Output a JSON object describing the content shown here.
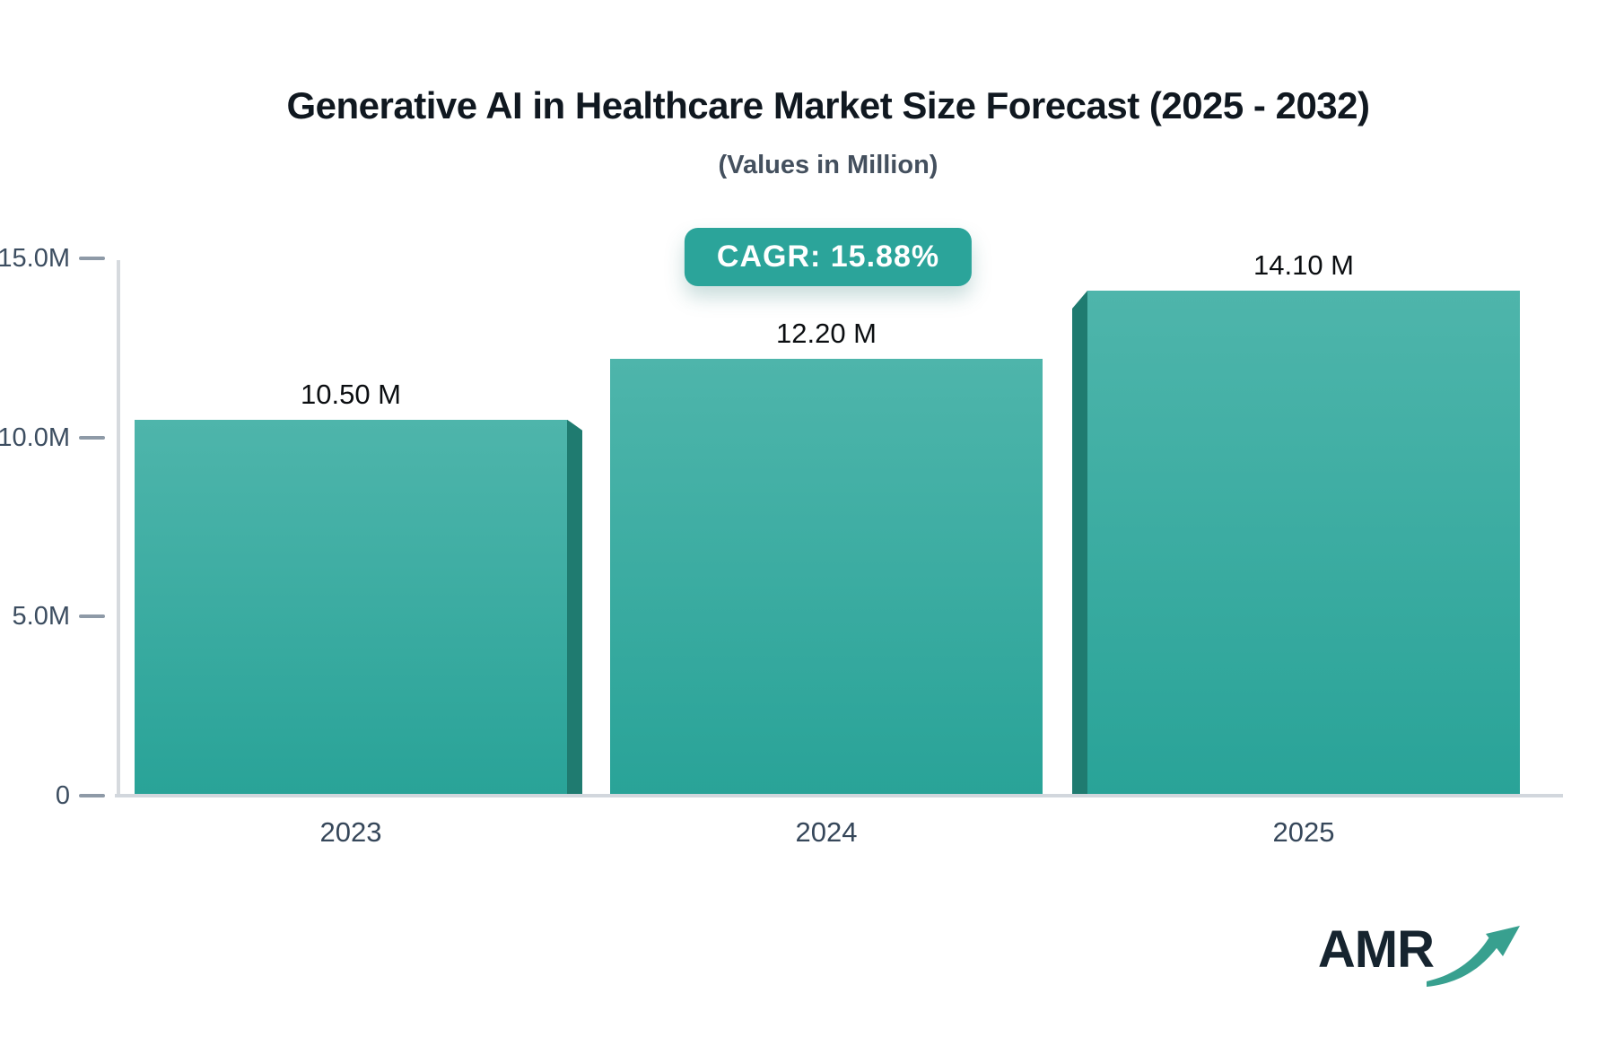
{
  "chart_data": {
    "type": "bar",
    "title": "Generative AI in Healthcare Market Size Forecast (2025 - 2032)",
    "subtitle": "(Values in Million)",
    "categories": [
      "2023",
      "2024",
      "2025"
    ],
    "values": [
      10.5,
      12.2,
      14.1
    ],
    "bar_labels": [
      "10.50 M",
      "12.20 M",
      "14.10 M"
    ],
    "unit": "Million",
    "ylim": [
      0,
      15
    ],
    "y_ticks": [
      {
        "value": 0,
        "label": "0"
      },
      {
        "value": 5,
        "label": "5.0M"
      },
      {
        "value": 10,
        "label": "10.0M"
      },
      {
        "value": 15,
        "label": "15.0M"
      }
    ],
    "grid": "off",
    "legend": "none",
    "bar_color_top": "#4eb5ab",
    "bar_color_bottom": "#29a398",
    "bar_side_color": "#1f7b70",
    "axis_color": "#d6dade"
  },
  "badge": {
    "label": "CAGR: 15.88%",
    "color": "#2ba49a"
  },
  "logo": {
    "text": "AMR",
    "arrow_icon": "trend-up-arrow",
    "text_color": "#16242f",
    "arrow_color": "#38a08f"
  }
}
